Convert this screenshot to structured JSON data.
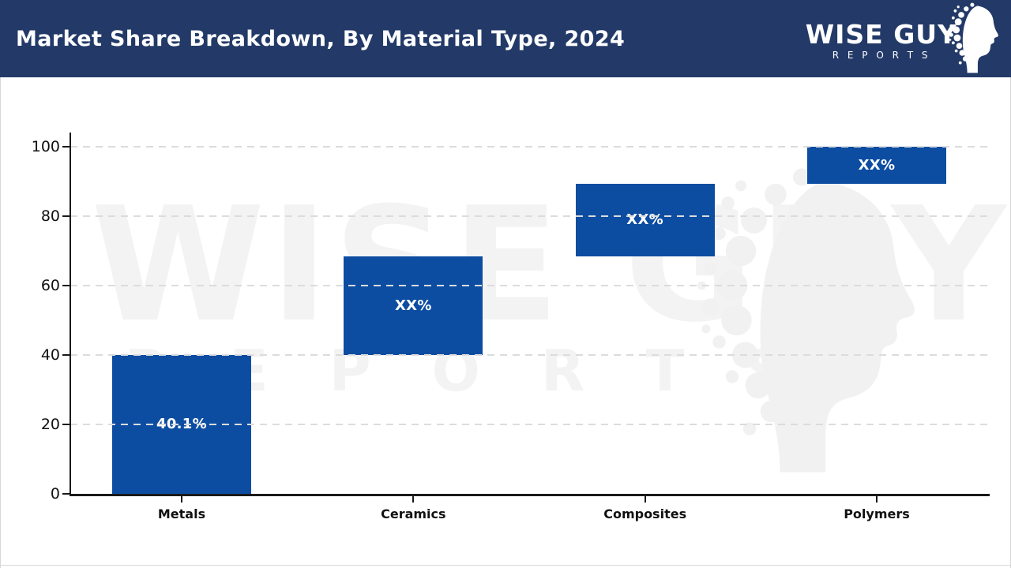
{
  "header": {
    "title": "Market Share Breakdown, By Material Type, 2024",
    "logo": {
      "line1": "WISE GUY",
      "line2": "R E P O R T S"
    }
  },
  "watermark": {
    "line1": "WISE GUY",
    "line2": "R E P O R T S"
  },
  "colors": {
    "header_bg": "#233A68",
    "bar": "#0C4DA2",
    "axis": "#1a1a1a",
    "grid": "#dcdcdc",
    "watermark": "#f3f3f3",
    "value_label": "#ffffff"
  },
  "chart_data": {
    "type": "bar",
    "subtype": "waterfall",
    "title": "Market Share Breakdown, By Material Type, 2024",
    "categories": [
      "Metals",
      "Ceramics",
      "Composites",
      "Polymers"
    ],
    "segments": [
      {
        "category": "Metals",
        "start": 0,
        "end": 40.1,
        "label": "40.1%"
      },
      {
        "category": "Ceramics",
        "start": 40.1,
        "end": 68.5,
        "label": "XX%"
      },
      {
        "category": "Composites",
        "start": 68.5,
        "end": 89.3,
        "label": "XX%"
      },
      {
        "category": "Polymers",
        "start": 89.3,
        "end": 100,
        "label": "XX%"
      }
    ],
    "yticks": [
      0,
      20,
      40,
      60,
      80,
      100
    ],
    "ylim": [
      0,
      104
    ],
    "xlabel": "",
    "ylabel": "",
    "grid": "horizontal-dashed",
    "legend": "none"
  }
}
